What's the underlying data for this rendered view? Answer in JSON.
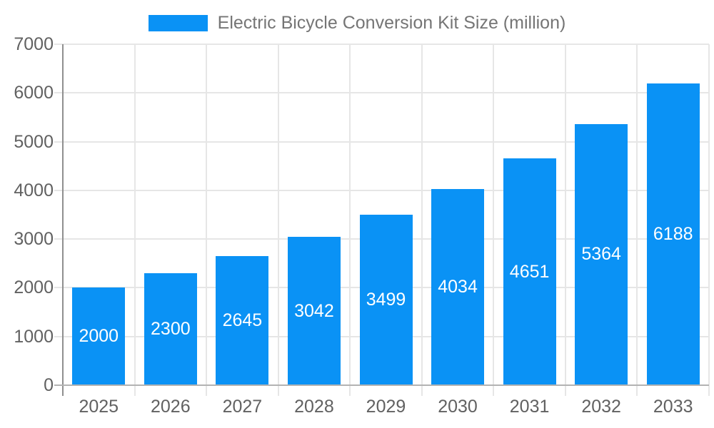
{
  "chart_data": {
    "type": "bar",
    "title": "Electric Bicycle Conversion Kit Size (million)",
    "legend_entries": [
      "Electric Bicycle Conversion Kit Size (million)"
    ],
    "legend_position": "top",
    "categories": [
      "2025",
      "2026",
      "2027",
      "2028",
      "2029",
      "2030",
      "2031",
      "2032",
      "2033"
    ],
    "series": [
      {
        "name": "Electric Bicycle Conversion Kit Size (million)",
        "values": [
          2000,
          2300,
          2645,
          3042,
          3499,
          4034,
          4651,
          5364,
          6188
        ]
      }
    ],
    "bar_value_labels": [
      "2000",
      "2300",
      "2645",
      "3042",
      "3499",
      "4034",
      "4651",
      "5364",
      "6188"
    ],
    "xlabel": "",
    "ylabel": "",
    "ylim": [
      0,
      7000
    ],
    "ytick_step": 1000,
    "ytick_labels": [
      "0",
      "1000",
      "2000",
      "3000",
      "4000",
      "5000",
      "6000",
      "7000"
    ],
    "grid": true
  },
  "colors": {
    "bar": "#0a92f5",
    "gridline": "#e6e6e6",
    "axis_line": "#8f8f8f",
    "baseline": "#b3b3b3",
    "tick_label": "#616161",
    "legend_text": "#757575",
    "bar_label": "#ffffff",
    "background": "#ffffff"
  }
}
